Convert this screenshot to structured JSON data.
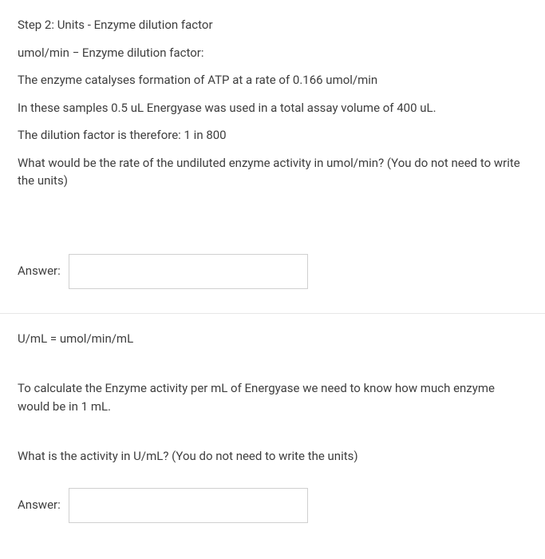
{
  "q1": {
    "heading": "Step 2: Units - Enzyme dilution factor",
    "line1": "umol/min − Enzyme dilution factor:",
    "line2": "The enzyme catalyses formation of ATP at a rate of  0.166 umol/min",
    "line3": "In these samples 0.5 uL Energyase was used in a total assay volume of 400 uL.",
    "line4": "The dilution factor is therefore: 1 in 800",
    "line5": "What would be the rate of the undiluted enzyme activity in umol/min? (You do not need to write the units)",
    "answer_label": "Answer:",
    "answer_value": ""
  },
  "q2": {
    "line1": "U/mL = umol/min/mL",
    "line2": "To calculate the Enzyme activity per mL of Energyase we need to know how much enzyme would be in 1 mL.",
    "line3": "What is the activity in U/mL? (You do not need to write the units)",
    "answer_label": "Answer:",
    "answer_value": ""
  },
  "colors": {
    "text": "#3e3e3e",
    "input_border": "#d0d0d0",
    "divider": "#e7e7e7",
    "background": "#ffffff"
  }
}
